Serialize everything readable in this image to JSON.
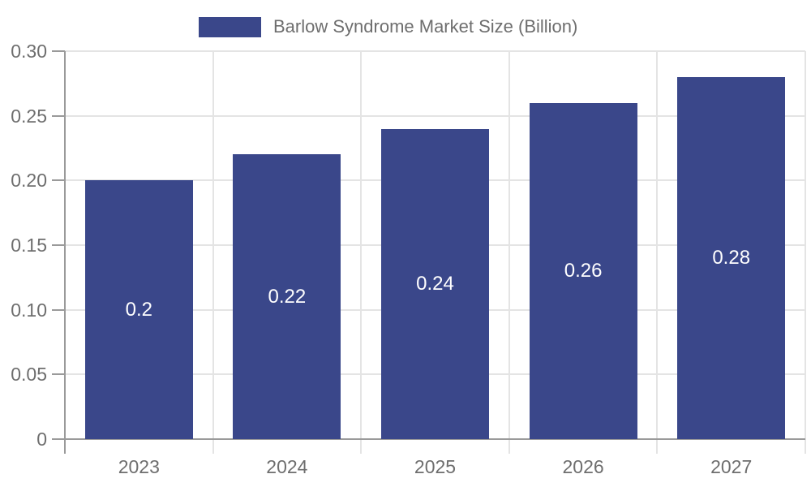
{
  "chart_data": {
    "type": "bar",
    "title": "Barlow Syndrome Market Size (Billion)",
    "categories": [
      "2023",
      "2024",
      "2025",
      "2026",
      "2027"
    ],
    "values": [
      0.2,
      0.22,
      0.24,
      0.26,
      0.28
    ],
    "bar_labels": [
      "0.2",
      "0.22",
      "0.24",
      "0.26",
      "0.28"
    ],
    "xlabel": "",
    "ylabel": "",
    "ylim": [
      0,
      0.3
    ],
    "y_ticks": [
      "0.30",
      "0.25",
      "0.20",
      "0.15",
      "0.10",
      "0.05",
      "0"
    ],
    "grid": true,
    "legend_position": "top-center",
    "bar_label_position": "center",
    "colors": {
      "bar": "#3a478a",
      "bar_label": "#ffffff",
      "axis_text": "#6e6e6e",
      "axis_line": "#9a9a9a",
      "gridline": "#e4e4e4",
      "background": "#ffffff"
    }
  }
}
